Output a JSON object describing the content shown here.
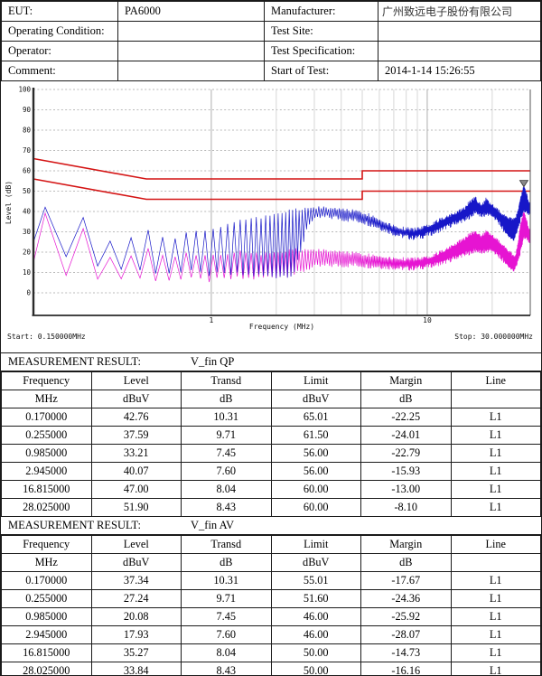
{
  "header": {
    "eut_label": "EUT:",
    "eut": "PA6000",
    "manufacturer_label": "Manufacturer:",
    "manufacturer": "广州致远电子股份有限公司",
    "operating_condition_label": "Operating Condition:",
    "operating_condition": "",
    "test_site_label": "Test Site:",
    "test_site": "",
    "operator_label": "Operator:",
    "operator": "",
    "test_specification_label": "Test Specification:",
    "test_specification": "",
    "comment_label": "Comment:",
    "comment": "",
    "start_of_test_label": "Start of Test:",
    "start_of_test": "2014-1-14 15:26:55"
  },
  "chart": {
    "ylabel": "Level (dB)",
    "xlabel": "Frequency (MHz)",
    "start_label": "Start: 0.150000MHz",
    "stop_label": "Stop: 30.000000MHz"
  },
  "chart_data": {
    "type": "line",
    "x_axis": {
      "label": "Frequency (MHz)",
      "scale": "log",
      "min_mhz": 0.15,
      "max_mhz": 30,
      "major_ticks": [
        1,
        10
      ],
      "minor_gridlines": [
        2,
        3,
        4,
        5,
        6,
        7,
        8,
        9,
        20
      ]
    },
    "y_axis": {
      "label": "Level (dB)",
      "min": 0,
      "max": 100,
      "tick_step": 10,
      "grid": "dashed"
    },
    "limit_lines": [
      {
        "name": "QP limit",
        "color": "#d41414",
        "points": [
          [
            0.15,
            66
          ],
          [
            0.5,
            56
          ],
          [
            5,
            56
          ],
          [
            5,
            60
          ],
          [
            30,
            60
          ]
        ]
      },
      {
        "name": "AV limit",
        "color": "#d41414",
        "points": [
          [
            0.15,
            56
          ],
          [
            0.5,
            46
          ],
          [
            5,
            46
          ],
          [
            5,
            50
          ],
          [
            30,
            50
          ]
        ]
      }
    ],
    "traces": [
      {
        "name": "V_fin QP",
        "color": "#1717c8",
        "comb_fundamental_mhz": 0.085,
        "peak_env": [
          [
            0.15,
            25
          ],
          [
            0.17,
            43
          ],
          [
            0.21,
            23
          ],
          [
            0.255,
            37.5
          ],
          [
            0.3,
            23
          ],
          [
            0.34,
            26
          ],
          [
            0.43,
            28
          ],
          [
            0.51,
            30
          ],
          [
            0.6,
            28
          ],
          [
            0.68,
            27
          ],
          [
            0.77,
            29
          ],
          [
            0.85,
            30
          ],
          [
            0.94,
            30
          ],
          [
            1.05,
            32
          ],
          [
            1.2,
            34
          ],
          [
            1.35,
            35
          ],
          [
            1.5,
            36
          ],
          [
            1.7,
            37
          ],
          [
            1.9,
            38.5
          ],
          [
            2.1,
            39.5
          ],
          [
            2.4,
            40.5
          ],
          [
            2.8,
            41.5
          ],
          [
            3.2,
            42
          ],
          [
            3.7,
            41.5
          ],
          [
            4.2,
            41
          ],
          [
            5,
            39.5
          ],
          [
            5.5,
            38
          ],
          [
            6,
            36
          ],
          [
            6.5,
            34.5
          ],
          [
            7,
            33
          ],
          [
            7.5,
            32
          ],
          [
            8,
            31.5
          ],
          [
            8.6,
            31
          ],
          [
            9.3,
            32
          ],
          [
            10,
            33
          ],
          [
            11,
            35
          ],
          [
            12,
            37
          ],
          [
            13,
            38.5
          ],
          [
            14,
            40
          ],
          [
            15,
            42
          ],
          [
            15.8,
            45
          ],
          [
            16.8,
            47
          ],
          [
            17.2,
            44
          ],
          [
            18,
            43
          ],
          [
            18.7,
            46
          ],
          [
            19.5,
            44
          ],
          [
            20.5,
            42
          ],
          [
            21.5,
            40
          ],
          [
            22.5,
            38
          ],
          [
            23.5,
            37
          ],
          [
            24.5,
            36
          ],
          [
            25.5,
            36
          ],
          [
            26.3,
            40
          ],
          [
            27,
            46
          ],
          [
            28,
            52.5
          ],
          [
            28.6,
            50
          ],
          [
            29.3,
            46
          ],
          [
            30,
            43
          ]
        ],
        "valley_env": [
          [
            0.15,
            25
          ],
          [
            0.19,
            20
          ],
          [
            0.23,
            16
          ],
          [
            0.28,
            14
          ],
          [
            0.35,
            12
          ],
          [
            0.45,
            11
          ],
          [
            0.6,
            10
          ],
          [
            0.8,
            10
          ],
          [
            1,
            9
          ],
          [
            1.3,
            9
          ],
          [
            1.6,
            8.5
          ],
          [
            2,
            8
          ],
          [
            2.4,
            9
          ],
          [
            2.6,
            20
          ],
          [
            2.8,
            34
          ],
          [
            3.2,
            37
          ],
          [
            3.7,
            37
          ],
          [
            4.2,
            36
          ],
          [
            5,
            35
          ],
          [
            5.5,
            33.5
          ],
          [
            6,
            32
          ],
          [
            6.5,
            30.5
          ],
          [
            7,
            29
          ],
          [
            7.5,
            28
          ],
          [
            8,
            27.5
          ],
          [
            8.6,
            27
          ],
          [
            9.3,
            27.5
          ],
          [
            10,
            28.5
          ],
          [
            11,
            30
          ],
          [
            12,
            32
          ],
          [
            13,
            33.5
          ],
          [
            14,
            35
          ],
          [
            15,
            36
          ],
          [
            16,
            38
          ],
          [
            16.8,
            40
          ],
          [
            17.5,
            38
          ],
          [
            18,
            38
          ],
          [
            19,
            39
          ],
          [
            20,
            38
          ],
          [
            21,
            36
          ],
          [
            22,
            33
          ],
          [
            23,
            30
          ],
          [
            24,
            28
          ],
          [
            25,
            26
          ],
          [
            26,
            30
          ],
          [
            27,
            36
          ],
          [
            28,
            40
          ],
          [
            28.6,
            40
          ],
          [
            29.3,
            39
          ],
          [
            30,
            39
          ]
        ]
      },
      {
        "name": "V_fin AV",
        "color": "#e614d2",
        "comb_fundamental_mhz": 0.085,
        "peak_env": [
          [
            0.15,
            15
          ],
          [
            0.17,
            40
          ],
          [
            0.21,
            14
          ],
          [
            0.255,
            32
          ],
          [
            0.3,
            12
          ],
          [
            0.34,
            18
          ],
          [
            0.43,
            19
          ],
          [
            0.51,
            21
          ],
          [
            0.6,
            19
          ],
          [
            0.68,
            18
          ],
          [
            0.77,
            19
          ],
          [
            0.85,
            18
          ],
          [
            0.94,
            18
          ],
          [
            1.05,
            19
          ],
          [
            1.2,
            19
          ],
          [
            1.35,
            20
          ],
          [
            1.5,
            19
          ],
          [
            1.7,
            19
          ],
          [
            1.9,
            20
          ],
          [
            2.1,
            20
          ],
          [
            2.4,
            21
          ],
          [
            2.8,
            21
          ],
          [
            3.2,
            21
          ],
          [
            3.7,
            20.5
          ],
          [
            4.2,
            20
          ],
          [
            5,
            19
          ],
          [
            5.5,
            18.5
          ],
          [
            6,
            18
          ],
          [
            6.5,
            17.5
          ],
          [
            7,
            17
          ],
          [
            7.5,
            17
          ],
          [
            8,
            16.5
          ],
          [
            8.6,
            16.5
          ],
          [
            9.3,
            17
          ],
          [
            10,
            17.5
          ],
          [
            11,
            19
          ],
          [
            12,
            21
          ],
          [
            13,
            23
          ],
          [
            14,
            25
          ],
          [
            15,
            27
          ],
          [
            15.8,
            29
          ],
          [
            16.8,
            30
          ],
          [
            17.5,
            28
          ],
          [
            18,
            28
          ],
          [
            18.7,
            30
          ],
          [
            19.5,
            29
          ],
          [
            20.5,
            27
          ],
          [
            21.5,
            25
          ],
          [
            22.5,
            23
          ],
          [
            23.5,
            21
          ],
          [
            24.5,
            19
          ],
          [
            25.5,
            17
          ],
          [
            26.3,
            24
          ],
          [
            27,
            33
          ],
          [
            28,
            40
          ],
          [
            28.6,
            37
          ],
          [
            29.3,
            33
          ],
          [
            30,
            30
          ]
        ],
        "valley_env": [
          [
            0.15,
            15
          ],
          [
            0.19,
            9
          ],
          [
            0.23,
            8
          ],
          [
            0.28,
            7
          ],
          [
            0.35,
            7
          ],
          [
            0.45,
            7
          ],
          [
            0.6,
            6.5
          ],
          [
            0.8,
            6.5
          ],
          [
            1,
            6
          ],
          [
            1.3,
            7
          ],
          [
            1.6,
            7
          ],
          [
            2,
            8
          ],
          [
            2.4,
            9
          ],
          [
            2.6,
            10
          ],
          [
            2.8,
            12
          ],
          [
            3.2,
            13
          ],
          [
            3.7,
            13.5
          ],
          [
            4.2,
            13.5
          ],
          [
            5,
            13.5
          ],
          [
            5.5,
            13
          ],
          [
            6,
            13
          ],
          [
            6.5,
            12.5
          ],
          [
            7,
            12.5
          ],
          [
            7.5,
            12
          ],
          [
            8,
            12
          ],
          [
            8.6,
            12
          ],
          [
            9.3,
            12.5
          ],
          [
            10,
            13
          ],
          [
            11,
            14
          ],
          [
            12,
            15
          ],
          [
            13,
            16.5
          ],
          [
            14,
            18
          ],
          [
            15,
            19
          ],
          [
            16,
            20
          ],
          [
            16.8,
            21
          ],
          [
            17.5,
            20
          ],
          [
            18,
            20
          ],
          [
            19,
            21
          ],
          [
            20,
            21
          ],
          [
            21,
            19
          ],
          [
            22,
            17
          ],
          [
            23,
            15
          ],
          [
            24,
            13
          ],
          [
            25,
            11
          ],
          [
            26,
            14
          ],
          [
            27,
            20
          ],
          [
            28,
            27
          ],
          [
            28.6,
            27
          ],
          [
            29.3,
            26
          ],
          [
            30,
            24
          ]
        ]
      }
    ],
    "marker": {
      "freq_mhz": 28.025,
      "level_db": 53.5
    },
    "start_mhz": 0.15,
    "stop_mhz": 30
  },
  "measurements": [
    {
      "title": "MEASUREMENT RESULT:",
      "trace": "V_fin QP",
      "columns": [
        "Frequency",
        "Level",
        "Transd",
        "Limit",
        "Margin",
        "Line"
      ],
      "units": [
        "MHz",
        "dBuV",
        "dB",
        "dBuV",
        "dB",
        ""
      ],
      "rows": [
        [
          "0.170000",
          "42.76",
          "10.31",
          "65.01",
          "-22.25",
          "L1"
        ],
        [
          "0.255000",
          "37.59",
          "9.71",
          "61.50",
          "-24.01",
          "L1"
        ],
        [
          "0.985000",
          "33.21",
          "7.45",
          "56.00",
          "-22.79",
          "L1"
        ],
        [
          "2.945000",
          "40.07",
          "7.60",
          "56.00",
          "-15.93",
          "L1"
        ],
        [
          "16.815000",
          "47.00",
          "8.04",
          "60.00",
          "-13.00",
          "L1"
        ],
        [
          "28.025000",
          "51.90",
          "8.43",
          "60.00",
          "-8.10",
          "L1"
        ]
      ]
    },
    {
      "title": "MEASUREMENT RESULT:",
      "trace": "V_fin AV",
      "columns": [
        "Frequency",
        "Level",
        "Transd",
        "Limit",
        "Margin",
        "Line"
      ],
      "units": [
        "MHz",
        "dBuV",
        "dB",
        "dBuV",
        "dB",
        ""
      ],
      "rows": [
        [
          "0.170000",
          "37.34",
          "10.31",
          "55.01",
          "-17.67",
          "L1"
        ],
        [
          "0.255000",
          "27.24",
          "9.71",
          "51.60",
          "-24.36",
          "L1"
        ],
        [
          "0.985000",
          "20.08",
          "7.45",
          "46.00",
          "-25.92",
          "L1"
        ],
        [
          "2.945000",
          "17.93",
          "7.60",
          "46.00",
          "-28.07",
          "L1"
        ],
        [
          "16.815000",
          "35.27",
          "8.04",
          "50.00",
          "-14.73",
          "L1"
        ],
        [
          "28.025000",
          "33.84",
          "8.43",
          "50.00",
          "-16.16",
          "L1"
        ]
      ]
    }
  ]
}
